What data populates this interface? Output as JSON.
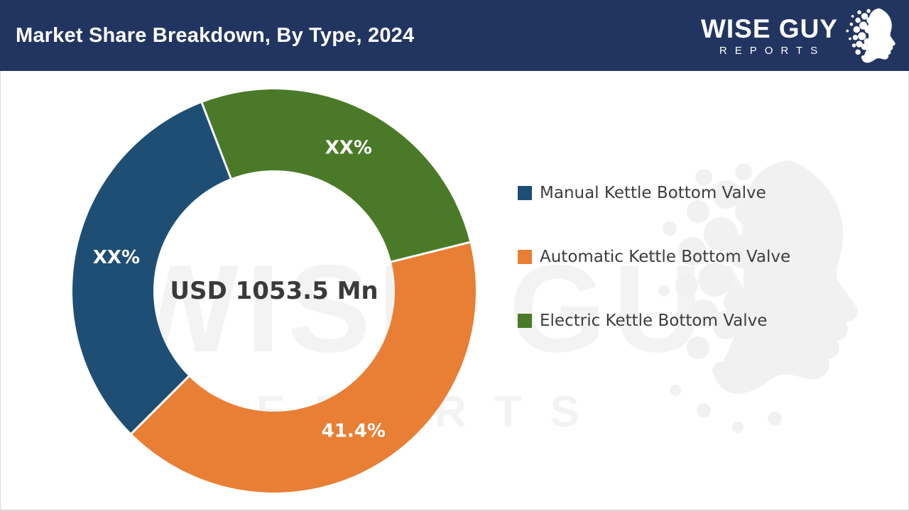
{
  "header": {
    "title": "Market Share Breakdown, By Type, 2024",
    "logo": {
      "line1": "WISE GUY",
      "line2": "REPORTS"
    }
  },
  "watermark": {
    "line1": "WISE GUY",
    "line2": "REPORTS"
  },
  "chart_data": {
    "type": "pie",
    "donut": true,
    "title": "Market Share Breakdown, By Type, 2024",
    "center_label": "USD 1053.5 Mn",
    "start_deg": 339,
    "legend_position": "right",
    "segments": [
      {
        "name": "Electric Kettle Bottom Valve",
        "label": "XX%",
        "sweep_deg": 97,
        "color": "#4a7a28"
      },
      {
        "name": "Automatic Kettle Bottom Valve",
        "label": "41.4%",
        "sweep_deg": 149,
        "color": "#e87f35"
      },
      {
        "name": "Manual Kettle Bottom Valve",
        "label": "XX%",
        "sweep_deg": 114,
        "color": "#1f4e74"
      }
    ],
    "legend": [
      {
        "label": "Manual Kettle Bottom Valve",
        "color": "#1f4e74"
      },
      {
        "label": "Automatic Kettle Bottom Valve",
        "color": "#e87f35"
      },
      {
        "label": "Electric Kettle Bottom Valve",
        "color": "#4a7a28"
      }
    ]
  }
}
